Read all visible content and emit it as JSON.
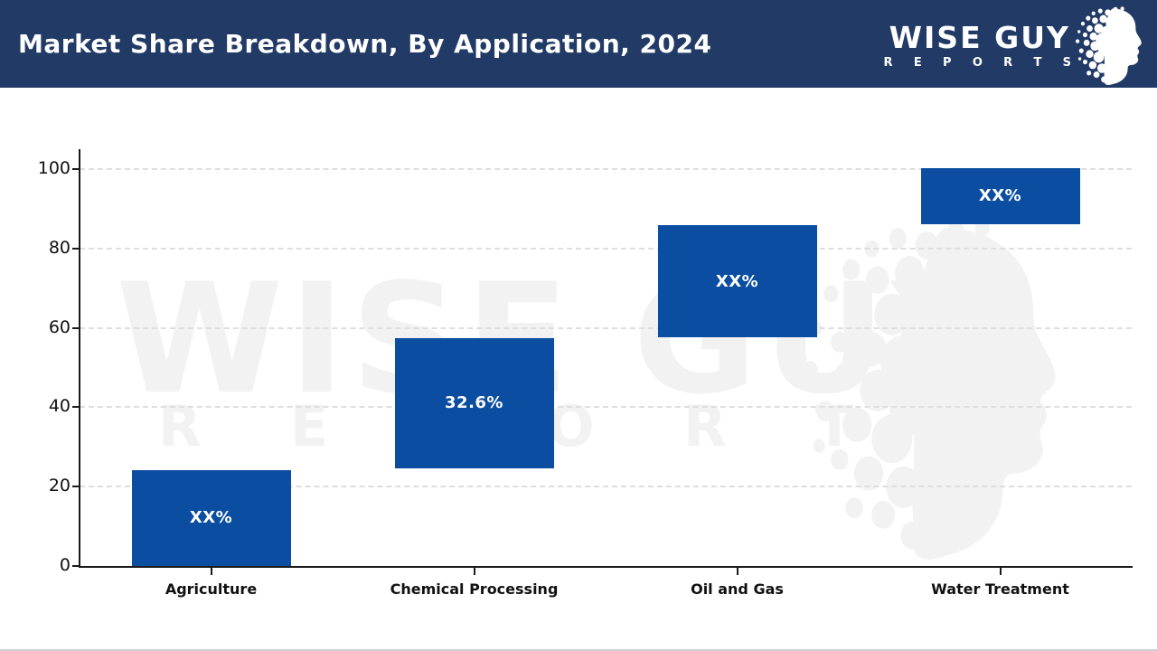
{
  "header": {
    "title": "Market Share Breakdown, By Application, 2024",
    "bg_color": "#223a66",
    "logo": {
      "line1": "WISE GUY",
      "line2": "REPORTS"
    }
  },
  "watermark": {
    "line1": "WISE GUY",
    "line2": "REPORTS"
  },
  "chart_data": {
    "type": "bar",
    "subtype": "waterfall",
    "title": "Market Share Breakdown, By Application, 2024",
    "xlabel": "",
    "ylabel": "",
    "categories": [
      "Agriculture",
      "Chemical Processing",
      "Oil and Gas",
      "Water Treatment"
    ],
    "segments": [
      {
        "category": "Agriculture",
        "label": "XX%",
        "start": 0,
        "end": 24.2
      },
      {
        "category": "Chemical Processing",
        "label": "32.6%",
        "start": 24.7,
        "end": 57.3
      },
      {
        "category": "Oil and Gas",
        "label": "XX%",
        "start": 57.7,
        "end": 85.8
      },
      {
        "category": "Water Treatment",
        "label": "XX%",
        "start": 86.2,
        "end": 100.3
      }
    ],
    "ylim": [
      0,
      105
    ],
    "yticks": [
      0,
      20,
      40,
      60,
      80,
      100
    ],
    "grid": "horizontal dashed",
    "legend": "none",
    "bar_color": "#0b4da1",
    "bar_label_color": "#ffffff"
  }
}
